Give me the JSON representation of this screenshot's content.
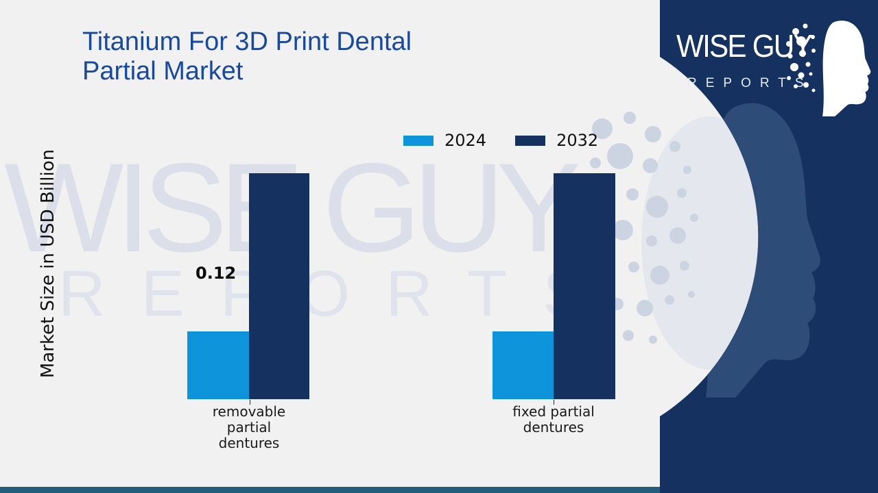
{
  "brand": {
    "name": "WISE GUY",
    "sub": "REPORTS"
  },
  "watermark": {
    "line1": "WISE GUY",
    "line2": "REPORTS"
  },
  "colors": {
    "accent_blue": "#0E94DB",
    "navy": "#14315F",
    "title_blue": "#17499E",
    "footer_teal": "#215E7D",
    "background": "#F1F1F2",
    "watermark_gray": "#DCDFE9",
    "face_watermark_blue": "#2E4C78"
  },
  "chart_data": {
    "type": "bar",
    "title": "Titanium For 3D Print Dental Partial Market",
    "ylabel": "Market Size in USD Billion",
    "xlabel": "",
    "categories": [
      "removable partial dentures",
      "fixed partial dentures"
    ],
    "series": [
      {
        "name": "2024",
        "color": "#0E94DB",
        "values": [
          0.12,
          0.12
        ]
      },
      {
        "name": "2032",
        "color": "#14315F",
        "values": [
          0.4,
          0.4
        ]
      }
    ],
    "data_labels": [
      {
        "series": "2024",
        "category": "removable partial dentures",
        "text": "0.12"
      }
    ],
    "ylim": [
      0,
      0.4
    ],
    "grid": false,
    "legend_position": "top-center"
  }
}
